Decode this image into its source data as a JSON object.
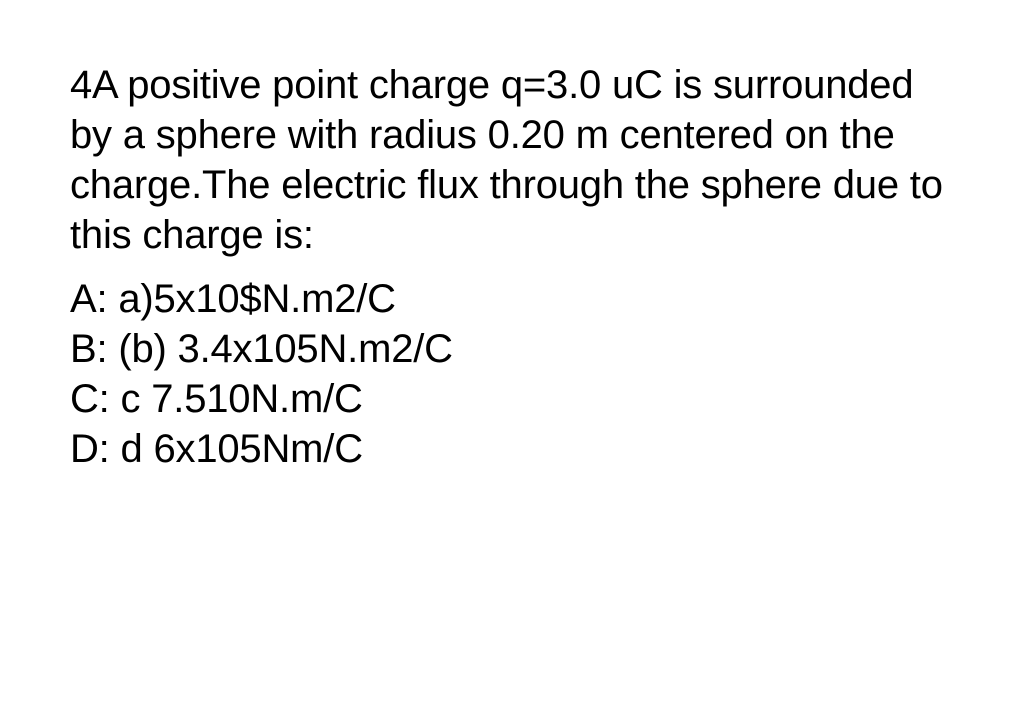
{
  "question": {
    "text": "4A positive point charge q=3.0 uC is surrounded by a sphere with radius 0.20 m centered on the charge.The electric flux through the sphere due to this charge is:",
    "fontsize": 40,
    "color": "#000000"
  },
  "options": [
    {
      "label": "A:",
      "text": "a)5x10$N.m2/C"
    },
    {
      "label": "B:",
      "text": "(b) 3.4x105N.m2/C"
    },
    {
      "label": "C:",
      "text": "c 7.510N.m/C"
    },
    {
      "label": "D:",
      "text": "d 6x105Nm/C"
    }
  ],
  "styling": {
    "background_color": "#ffffff",
    "text_color": "#000000",
    "font_family": "Arial, Helvetica, sans-serif",
    "question_fontsize": 40,
    "option_fontsize": 40,
    "line_height": 1.25
  }
}
